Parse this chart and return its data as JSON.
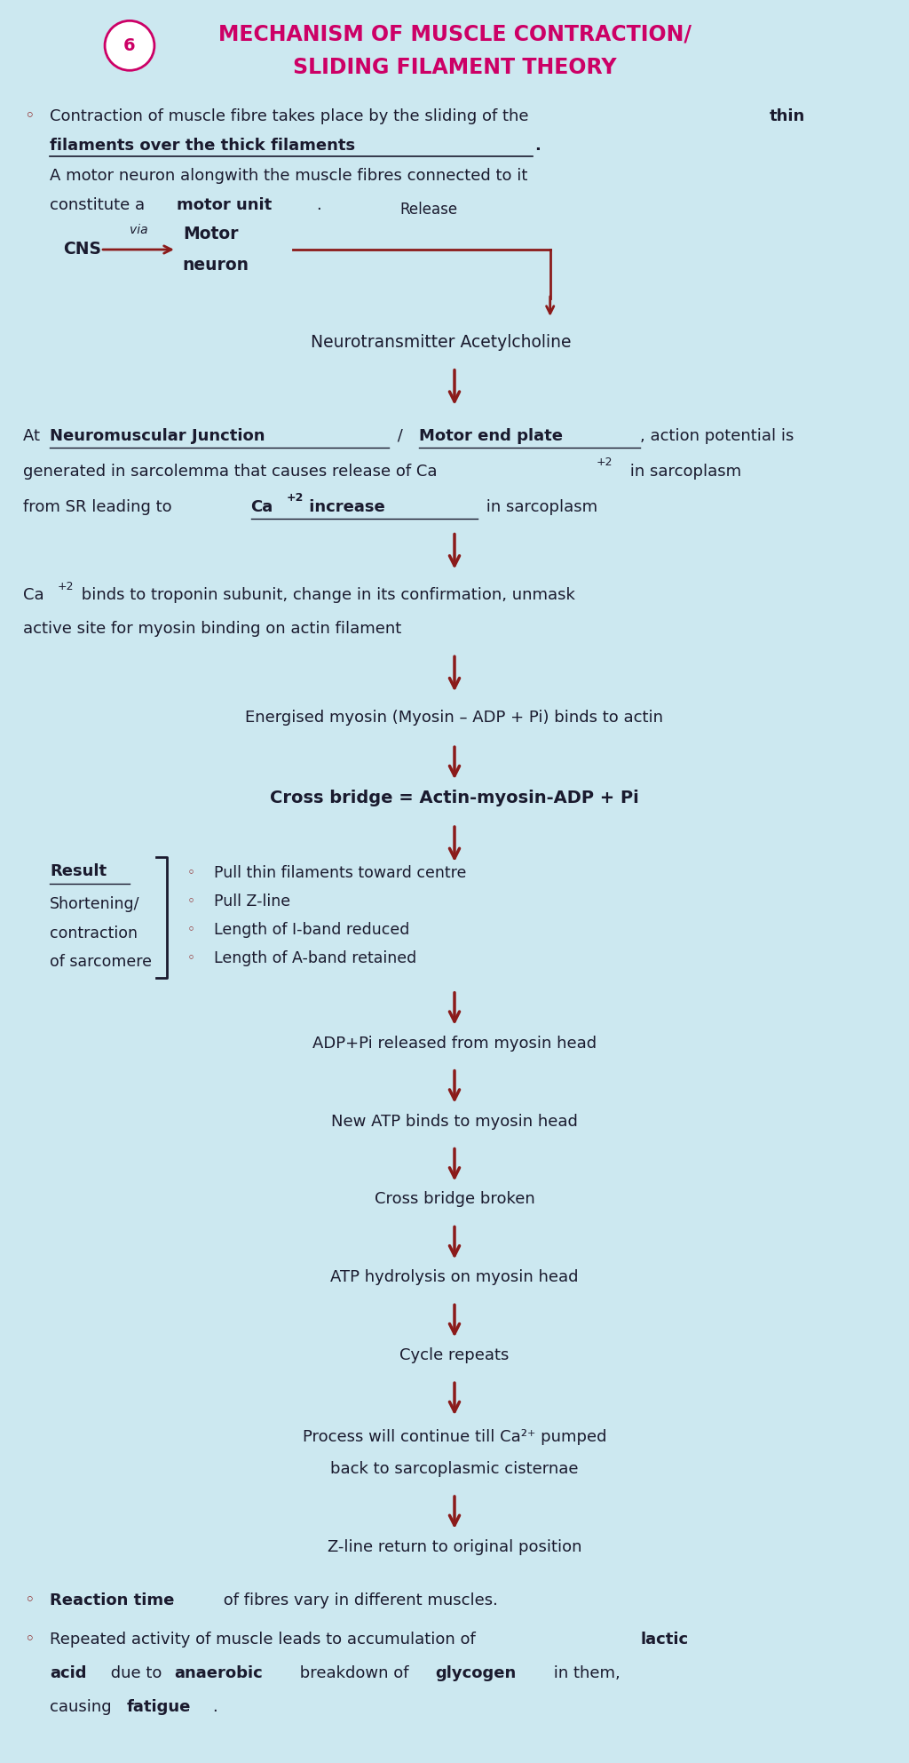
{
  "bg_color": "#cce8f0",
  "title_num": "6",
  "title_line1": "MECHANISM OF MUSCLE CONTRACTION/",
  "title_line2": "SLIDING FILAMENT THEORY",
  "title_color": "#cc0066",
  "text_color": "#1a1a2e",
  "dark_red": "#8b1a1a",
  "bullet_color": "#8b1a1a"
}
